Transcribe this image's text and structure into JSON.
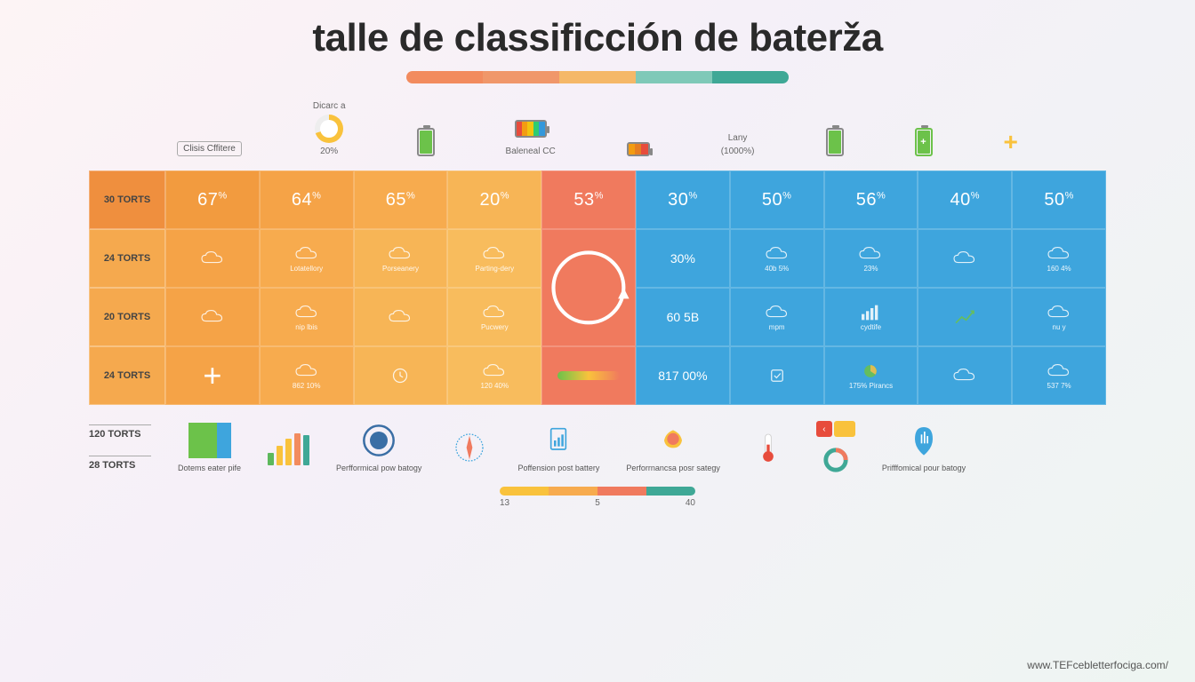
{
  "title": "talle de classificción de baterža",
  "gradient_colors": [
    "#f28b5e",
    "#f0976a",
    "#f5b868",
    "#7fc9b8",
    "#3fa896"
  ],
  "header_items": [
    {
      "label": "Clisis Cffitere",
      "sub": ""
    },
    {
      "label": "Dicarc a",
      "sub": "20%"
    },
    {
      "label": "",
      "sub": ""
    },
    {
      "label": "Baleneal CC",
      "sub": ""
    },
    {
      "label": "",
      "sub": ""
    },
    {
      "label": "Lany",
      "sub": "(1000%)"
    },
    {
      "label": "",
      "sub": ""
    },
    {
      "label": "",
      "sub": ""
    }
  ],
  "row_labels": [
    "30 TORTS",
    "24 TORTS",
    "20 TORTS",
    "24 TORTS"
  ],
  "row_label_bg": [
    "#ef8f3e",
    "#f5a94e",
    "#f5a94e",
    "#f5a94e"
  ],
  "row1_values": [
    "67%",
    "64%",
    "65%",
    "20%",
    "53%",
    "30%",
    "50%",
    "56%",
    "40%",
    "50%"
  ],
  "row1_colors": [
    "#f29b3f",
    "#f5a347",
    "#f7ab4e",
    "#f7b556",
    "#f07a5e",
    "#3ea5dd",
    "#3ea5dd",
    "#3ea5dd",
    "#3ea5dd",
    "#3ea5dd"
  ],
  "row2": [
    {
      "t": "icon",
      "txt": "",
      "c": "#f5a347"
    },
    {
      "t": "icon",
      "txt": "Lotatellory",
      "c": "#f7ab4e"
    },
    {
      "t": "icon",
      "txt": "Porseanery",
      "c": "#f7b556"
    },
    {
      "t": "icon",
      "txt": "Parting-dery",
      "c": "#f8bc5d"
    },
    {
      "t": "center",
      "c": "#f07a5e"
    },
    {
      "t": "val",
      "txt": "30%",
      "c": "#3ea5dd"
    },
    {
      "t": "icon",
      "txt": "40b 5%",
      "c": "#3ea5dd"
    },
    {
      "t": "icon",
      "txt": "23%",
      "c": "#3ea5dd"
    },
    {
      "t": "icon",
      "txt": "",
      "c": "#3ea5dd"
    },
    {
      "t": "icon",
      "txt": "160 4%",
      "c": "#3ea5dd"
    }
  ],
  "row3": [
    {
      "t": "icon",
      "txt": "",
      "c": "#f5a347"
    },
    {
      "t": "icon",
      "txt": "nip lbis",
      "c": "#f7ab4e"
    },
    {
      "t": "icon",
      "txt": "",
      "c": "#f7b556"
    },
    {
      "t": "icon",
      "txt": "Pucwery",
      "c": "#f8bc5d"
    },
    {
      "t": "center",
      "c": "#f07a5e"
    },
    {
      "t": "val",
      "txt": "60 5B",
      "c": "#3ea5dd"
    },
    {
      "t": "icon",
      "txt": "mpm",
      "c": "#3ea5dd"
    },
    {
      "t": "bars",
      "txt": "cydtife",
      "c": "#3ea5dd"
    },
    {
      "t": "chart",
      "txt": "",
      "c": "#3ea5dd"
    },
    {
      "t": "icon",
      "txt": "nu y",
      "c": "#3ea5dd"
    }
  ],
  "row4": [
    {
      "t": "plus",
      "txt": "",
      "c": "#f5a347"
    },
    {
      "t": "icon",
      "txt": "862 10%",
      "c": "#f7ab4e"
    },
    {
      "t": "clock",
      "txt": "",
      "c": "#f7b556"
    },
    {
      "t": "icon",
      "txt": "120 40%",
      "c": "#f8bc5d"
    },
    {
      "t": "bar",
      "txt": "",
      "c": "#f07a5e"
    },
    {
      "t": "val",
      "txt": "817 00%",
      "c": "#3ea5dd"
    },
    {
      "t": "check",
      "txt": "",
      "c": "#3ea5dd"
    },
    {
      "t": "pie",
      "txt": "175% Pirancs",
      "c": "#3ea5dd"
    },
    {
      "t": "icon",
      "txt": "",
      "c": "#3ea5dd"
    },
    {
      "t": "icon",
      "txt": "537 7%",
      "c": "#3ea5dd"
    }
  ],
  "bottom_labels": [
    "120 TORTS",
    "28 TORTS"
  ],
  "bottom_items": [
    {
      "label": "Dotems eater pife"
    },
    {
      "label": ""
    },
    {
      "label": "Perfformical pow batogy"
    },
    {
      "label": ""
    },
    {
      "label": "Poffension post battery"
    },
    {
      "label": "Perforrnancsa posr sategy"
    },
    {
      "label": ""
    },
    {
      "label": ""
    },
    {
      "label": "Prifffomical pour batogy"
    }
  ],
  "mini_bar_heights": [
    14,
    22,
    30,
    36,
    34
  ],
  "mini_bar_colors": [
    "#5db85c",
    "#f9c23c",
    "#f9c23c",
    "#f28b5e",
    "#3fa896"
  ],
  "scale_colors": [
    "#f9c23c",
    "#f7ab4e",
    "#f07a5e",
    "#3fa896"
  ],
  "scale_ticks": [
    "13",
    "5",
    "40"
  ],
  "footer": "www.TEFcebletterfociga.com/"
}
